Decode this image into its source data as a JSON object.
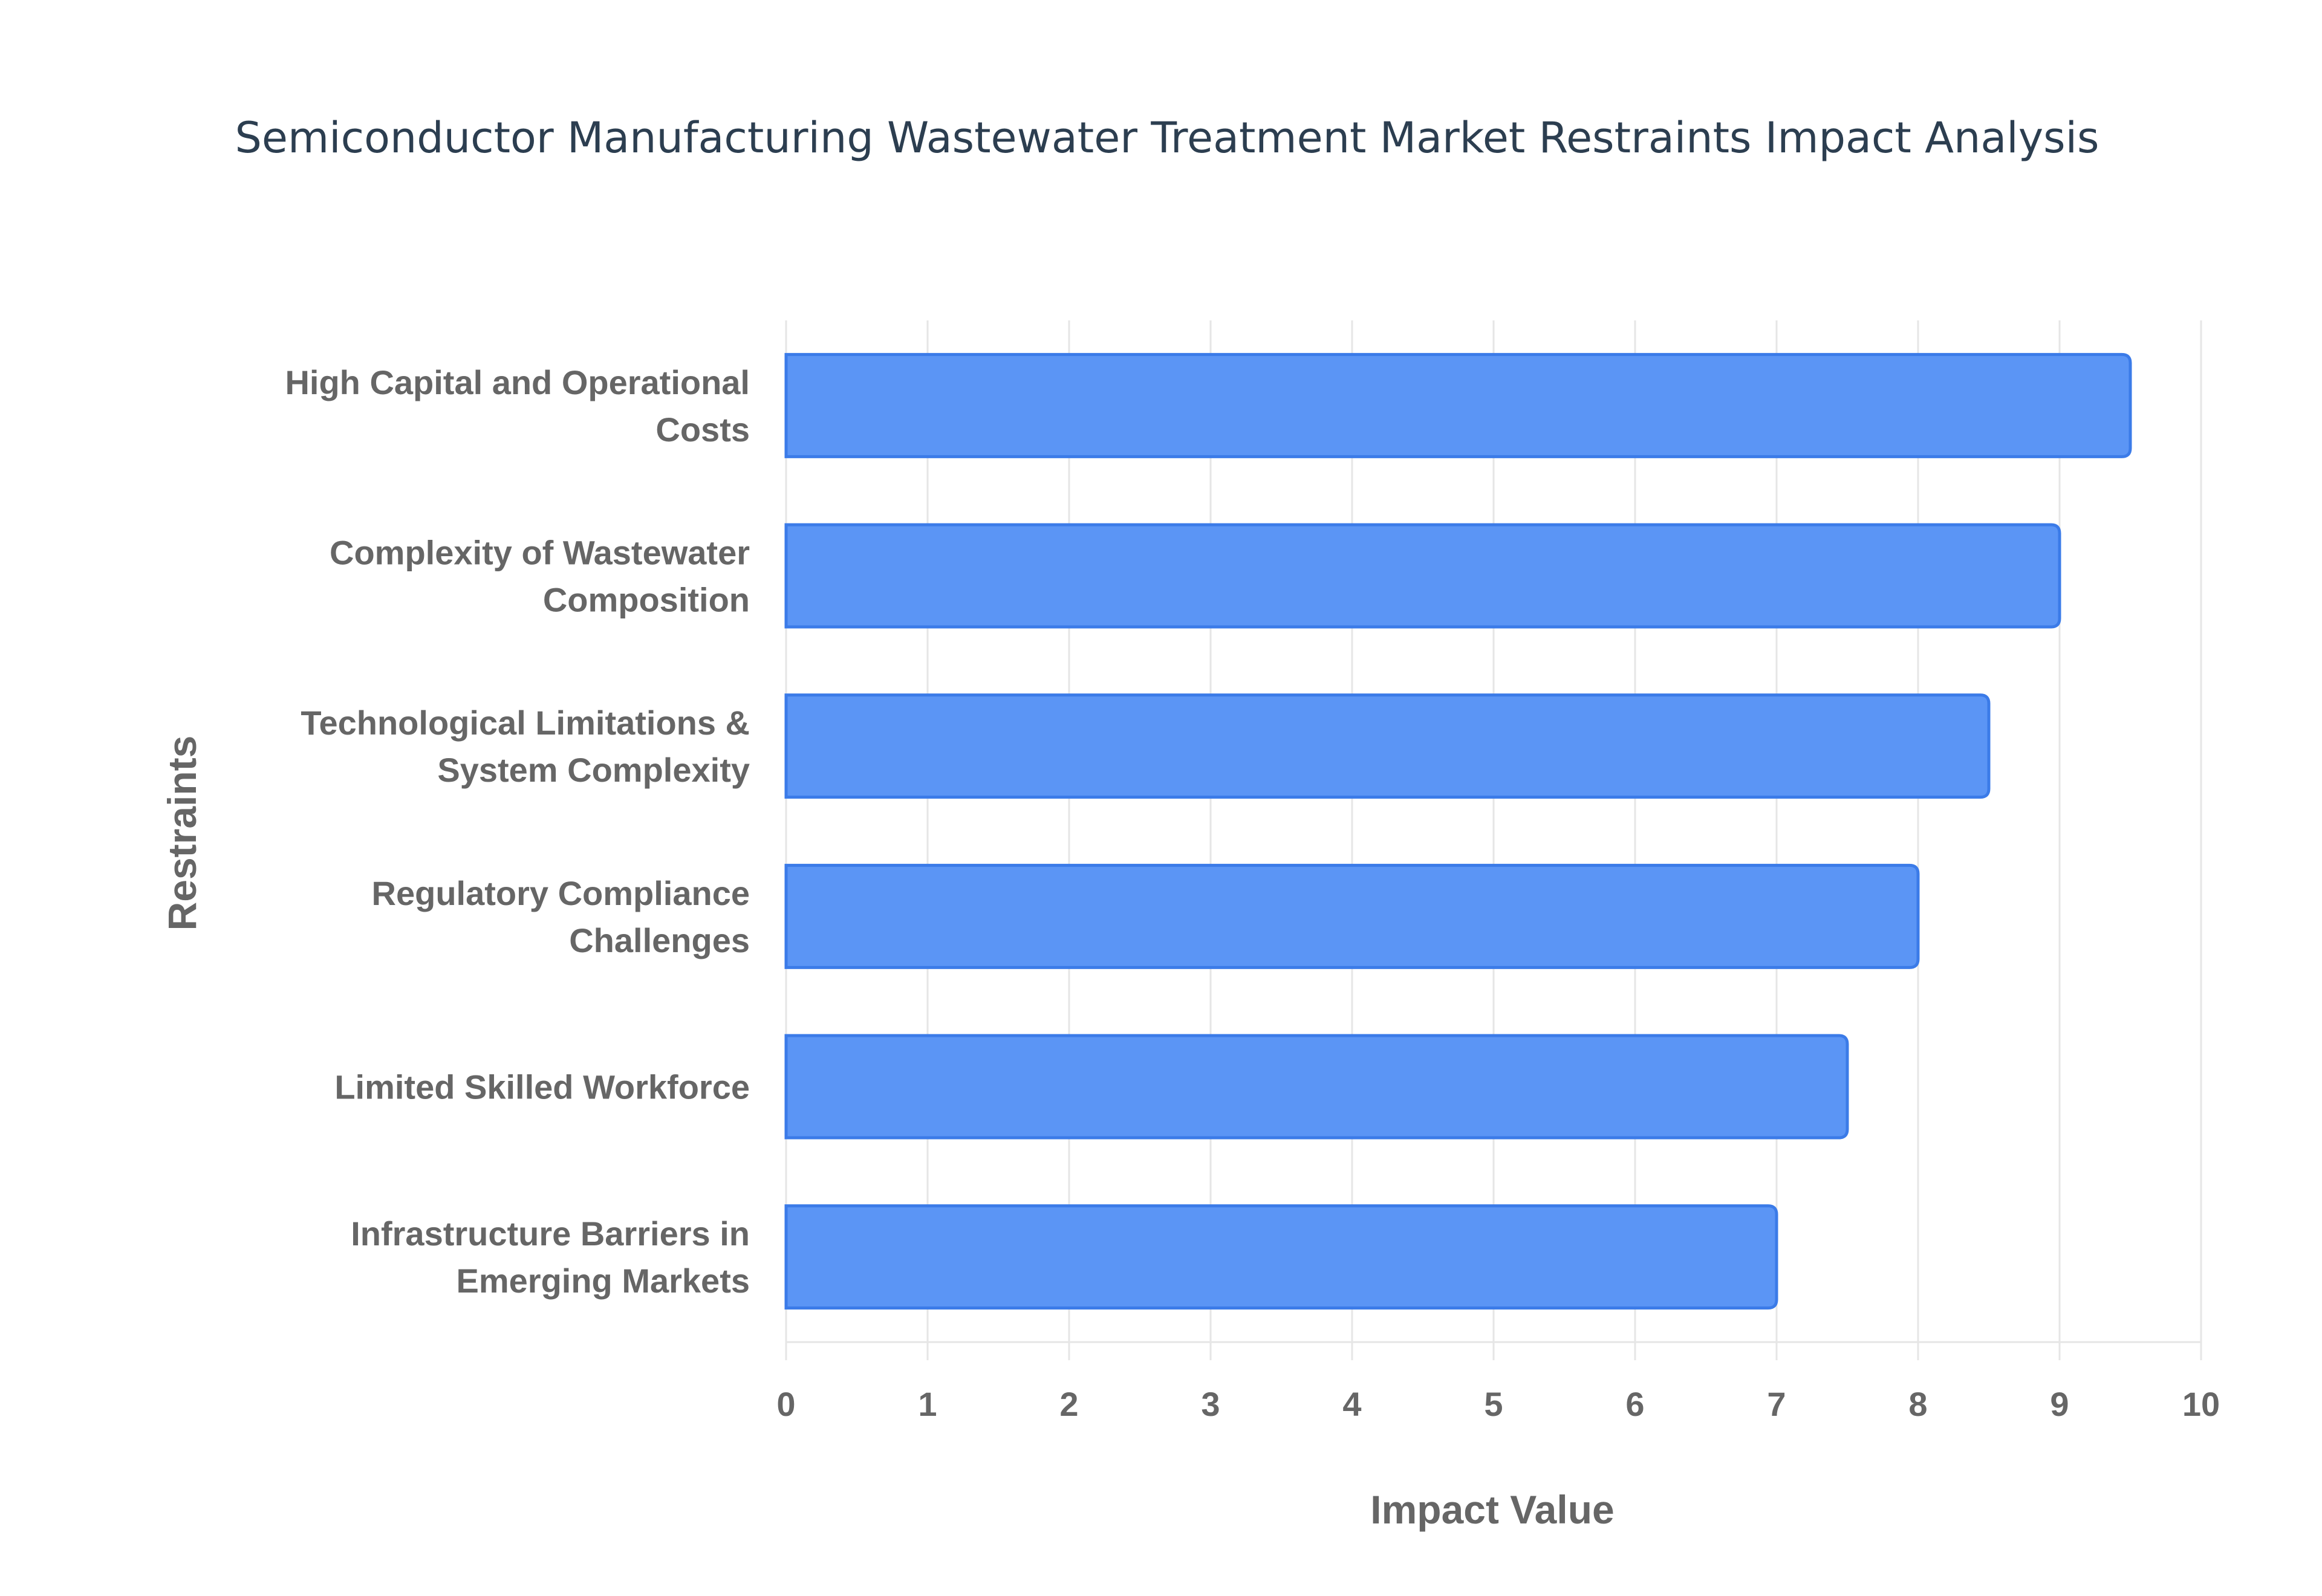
{
  "chart_data": {
    "type": "bar",
    "orientation": "horizontal",
    "title": "Semiconductor Manufacturing Wastewater Treatment Market Restraints Impact Analysis",
    "xlabel": "Impact Value",
    "ylabel": "Restraints",
    "xlim": [
      0,
      10
    ],
    "xticks": [
      0,
      1,
      2,
      3,
      4,
      5,
      6,
      7,
      8,
      9,
      10
    ],
    "grid": true,
    "legend": "none",
    "categories": [
      [
        "High Capital and Operational",
        "Costs"
      ],
      [
        "Complexity of Wastewater",
        "Composition"
      ],
      [
        "Technological Limitations &",
        "System Complexity"
      ],
      [
        "Regulatory Compliance",
        "Challenges"
      ],
      [
        "Limited Skilled Workforce"
      ],
      [
        "Infrastructure Barriers in",
        "Emerging Markets"
      ]
    ],
    "values": [
      9.5,
      9.0,
      8.5,
      8.0,
      7.5,
      7.0
    ],
    "colors": {
      "bar_fill": "#5b95f5",
      "bar_stroke": "#3b7be8",
      "text": "#666666",
      "title": "#2c3e50",
      "grid": "#e6e6e6"
    }
  }
}
